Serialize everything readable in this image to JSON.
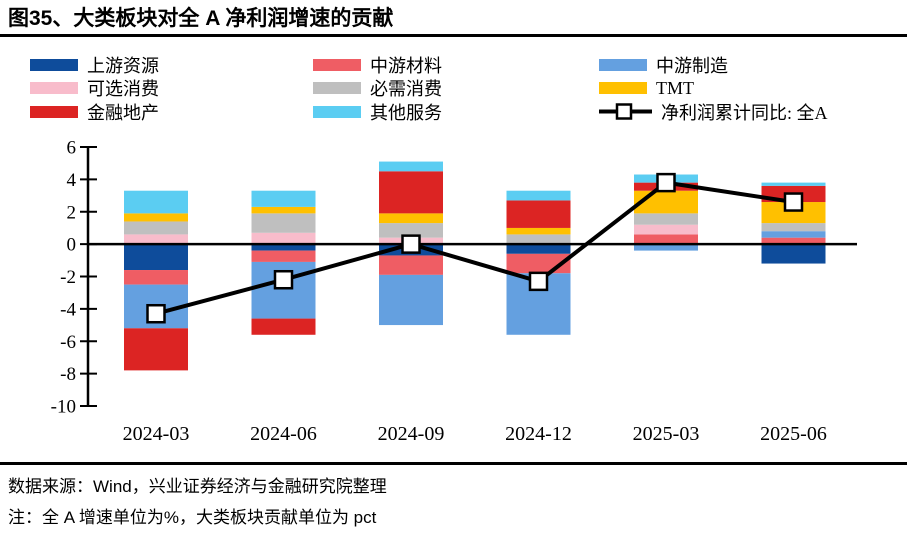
{
  "title": "图35、大类板块对全 A 净利润增速的贡献",
  "footer": {
    "source": "数据来源：Wind，兴业证券经济与金融研究院整理",
    "note": "注：全 A 增速单位为%，大类板块贡献单位为 pct"
  },
  "chart_data": {
    "type": "bar",
    "stacked": true,
    "title": "大类板块对全 A 净利润增速的贡献",
    "categories": [
      "2024-03",
      "2024-06",
      "2024-09",
      "2024-12",
      "2025-03",
      "2025-06"
    ],
    "series": [
      {
        "name": "上游资源",
        "color": "#0E4C9B",
        "values": [
          -1.6,
          -0.4,
          -0.7,
          -0.6,
          0,
          -1.2
        ]
      },
      {
        "name": "中游材料",
        "color": "#EF5D64",
        "values": [
          -0.9,
          -0.7,
          -1.2,
          -1.2,
          0.6,
          0.4
        ]
      },
      {
        "name": "中游制造",
        "color": "#64A0E0",
        "values": [
          -2.7,
          -3.5,
          -3.1,
          -3.8,
          -0.4,
          0.4
        ]
      },
      {
        "name": "可选消费",
        "color": "#F8BCCB",
        "values": [
          0.6,
          0.7,
          0.4,
          0,
          0.6,
          0
        ]
      },
      {
        "name": "必需消费",
        "color": "#BFBFBF",
        "values": [
          0.8,
          1.2,
          0.9,
          0.6,
          0.7,
          0.5
        ]
      },
      {
        "name": "TMT",
        "color": "#FFC000",
        "values": [
          0.5,
          0.4,
          0.6,
          0.4,
          1.4,
          1.3
        ]
      },
      {
        "name": "金融地产",
        "color": "#DC2423",
        "values": [
          -2.6,
          -1.0,
          2.6,
          1.7,
          0.5,
          1.0
        ]
      },
      {
        "name": "其他服务",
        "color": "#5BCDF2",
        "values": [
          1.4,
          1.0,
          0.6,
          0.6,
          0.5,
          0.2
        ]
      }
    ],
    "line_series": {
      "name": "净利润累计同比: 全A",
      "color": "#000000",
      "marker": "white-square",
      "values": [
        -4.3,
        -2.2,
        0.0,
        -2.3,
        3.8,
        2.6
      ]
    },
    "ylim": [
      -10,
      6
    ],
    "ytick_step": 2,
    "yticks": [
      6,
      4,
      2,
      0,
      -2,
      -4,
      -6,
      -8,
      -10
    ],
    "grid": false,
    "legend_position": "top",
    "units_note": "全A增速单位为%, 大类板块贡献单位为pct"
  }
}
